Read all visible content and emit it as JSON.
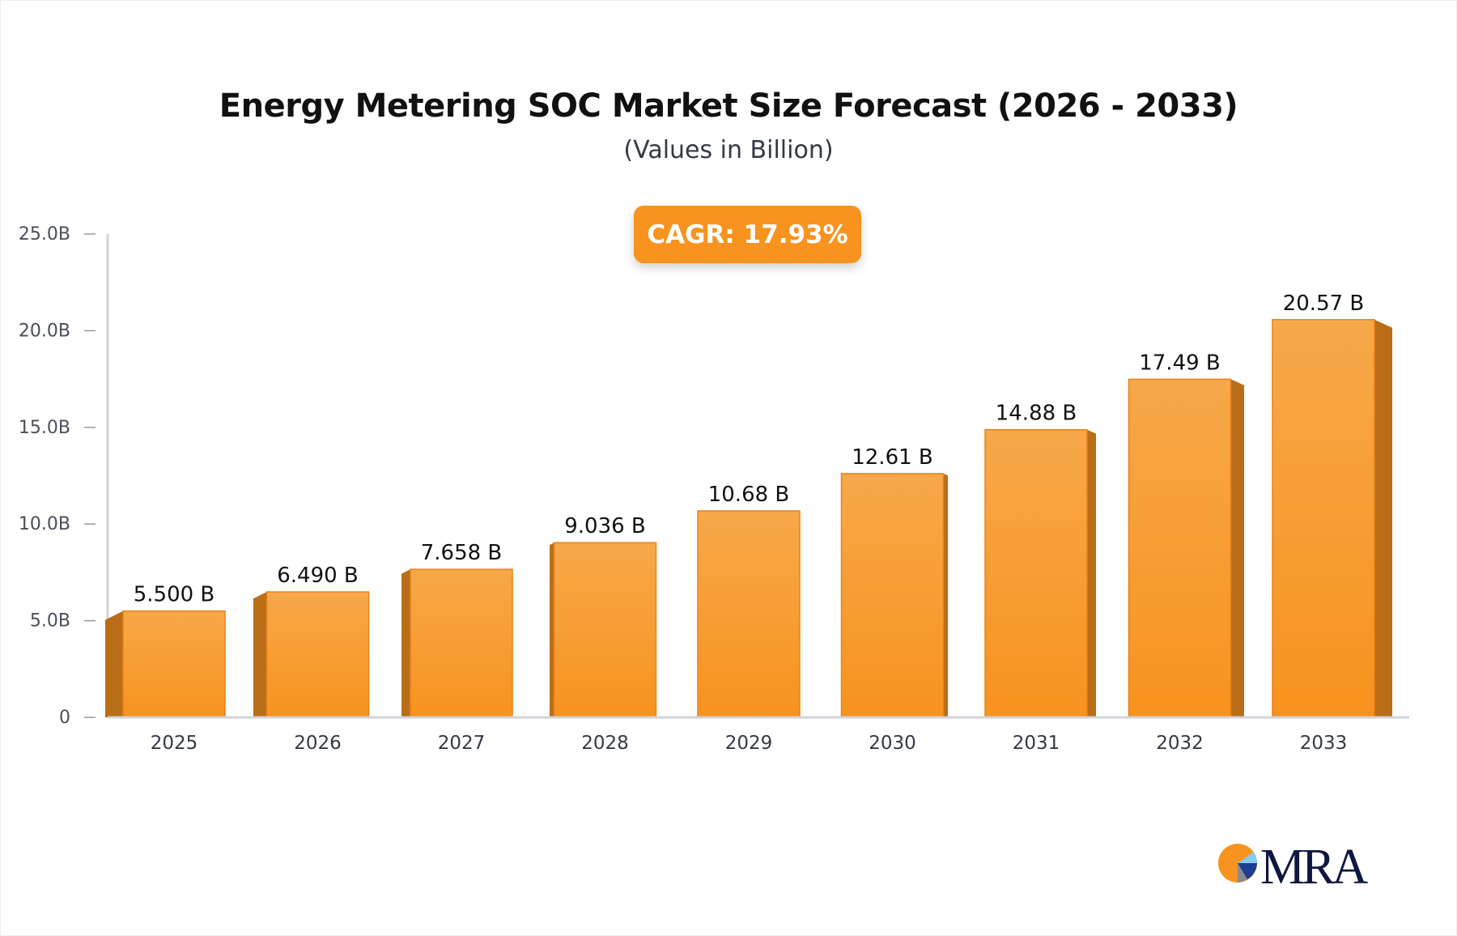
{
  "chart_data": {
    "type": "bar",
    "title": "Energy Metering SOC Market Size Forecast (2026 - 2033)",
    "subtitle": "(Values in Billion)",
    "annotation": "CAGR: 17.93%",
    "categories": [
      "2025",
      "2026",
      "2027",
      "2028",
      "2029",
      "2030",
      "2031",
      "2032",
      "2033"
    ],
    "values": [
      5.5,
      6.49,
      7.658,
      9.036,
      10.68,
      12.61,
      14.88,
      17.49,
      20.57
    ],
    "data_labels": [
      "5.500 B",
      "6.490 B",
      "7.658 B",
      "9.036 B",
      "10.68 B",
      "12.61 B",
      "14.88 B",
      "17.49 B",
      "20.57 B"
    ],
    "yticks": [
      0,
      5,
      10,
      15,
      20,
      25
    ],
    "ytick_labels": [
      "0",
      "5.0B",
      "10.0B",
      "15.0B",
      "20.0B",
      "25.0B"
    ],
    "ylim": [
      0,
      25
    ],
    "xlabel": "",
    "ylabel": "",
    "grid": false,
    "colors": {
      "bar_top": "#f7a84a",
      "bar_bottom": "#f7931e",
      "bar_side": "#b96e17",
      "axis": "#d1d3da",
      "cagr_bg": "#f7931e"
    }
  },
  "logo": {
    "text": "MRA"
  }
}
